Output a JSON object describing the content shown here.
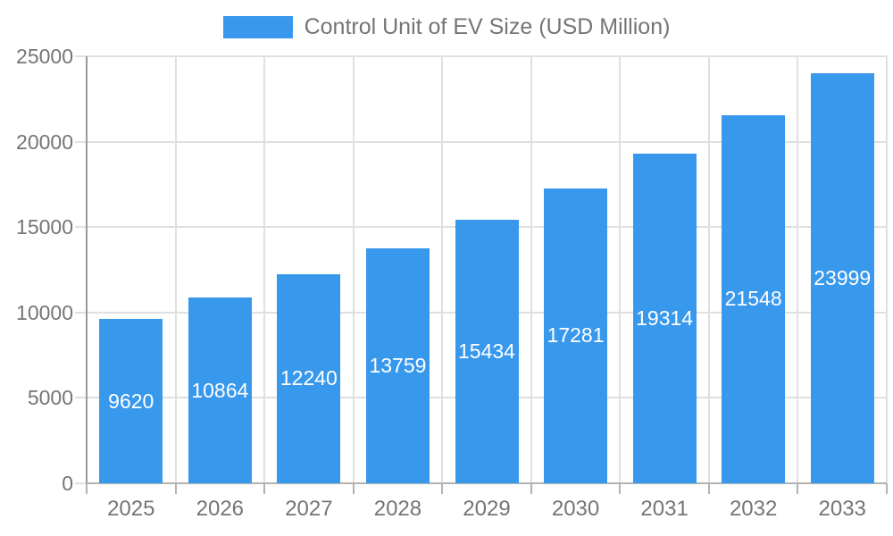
{
  "legend": {
    "label": "Control Unit of EV Size (USD Million)"
  },
  "chart_data": {
    "type": "bar",
    "title": "Control Unit of EV Size (USD Million)",
    "categories": [
      "2025",
      "2026",
      "2027",
      "2028",
      "2029",
      "2030",
      "2031",
      "2032",
      "2033"
    ],
    "values": [
      9620,
      10864,
      12240,
      13759,
      15434,
      17281,
      19314,
      21548,
      23999
    ],
    "series": [
      {
        "name": "Control Unit of EV Size (USD Million)",
        "values": [
          9620,
          10864,
          12240,
          13759,
          15434,
          17281,
          19314,
          21548,
          23999
        ]
      }
    ],
    "xlabel": "",
    "ylabel": "",
    "ylim": [
      0,
      25000
    ],
    "yticks": [
      0,
      5000,
      10000,
      15000,
      20000,
      25000
    ],
    "grid": true,
    "legend_position": "top-center",
    "value_labels": "inside-center"
  },
  "colors": {
    "bar": "#3898EC",
    "grid": "#e0e0e0",
    "axis_y": "#999999",
    "axis_x": "#b3b3b3",
    "label": "#757575",
    "value": "#ffffff",
    "bg": "#ffffff"
  }
}
